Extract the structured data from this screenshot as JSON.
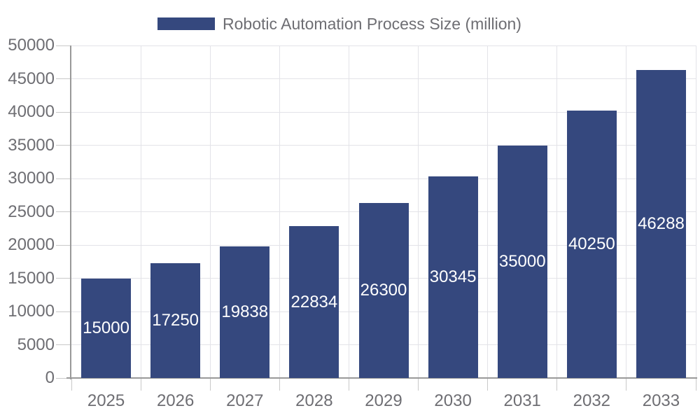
{
  "legend": {
    "label": "Robotic Automation Process Size (million)"
  },
  "chart_data": {
    "type": "bar",
    "title": "Robotic Automation Process Size (million)",
    "categories": [
      "2025",
      "2026",
      "2027",
      "2028",
      "2029",
      "2030",
      "2031",
      "2032",
      "2033"
    ],
    "series": [
      {
        "name": "Robotic Automation Process Size (million)",
        "values": [
          15000,
          17250,
          19838,
          22834,
          26300,
          30345,
          35000,
          40250,
          46288
        ]
      }
    ],
    "value_labels": [
      "15000",
      "17250",
      "19838",
      "22834",
      "26300",
      "30345",
      "35000",
      "40250",
      "46288"
    ],
    "xlabel": "",
    "ylabel": "",
    "ylim": [
      0,
      50000
    ],
    "yticks": [
      0,
      5000,
      10000,
      15000,
      20000,
      25000,
      30000,
      35000,
      40000,
      45000,
      50000
    ],
    "grid": true,
    "legend_position": "top",
    "colors": {
      "bar": "#35487e",
      "value_label": "#ffffff",
      "axis_text": "#6e6e73",
      "legend_text": "#6e6e73",
      "axis_line": "#999999",
      "tick": "#c9c9c9",
      "grid_line": "#e3e3e8"
    }
  }
}
